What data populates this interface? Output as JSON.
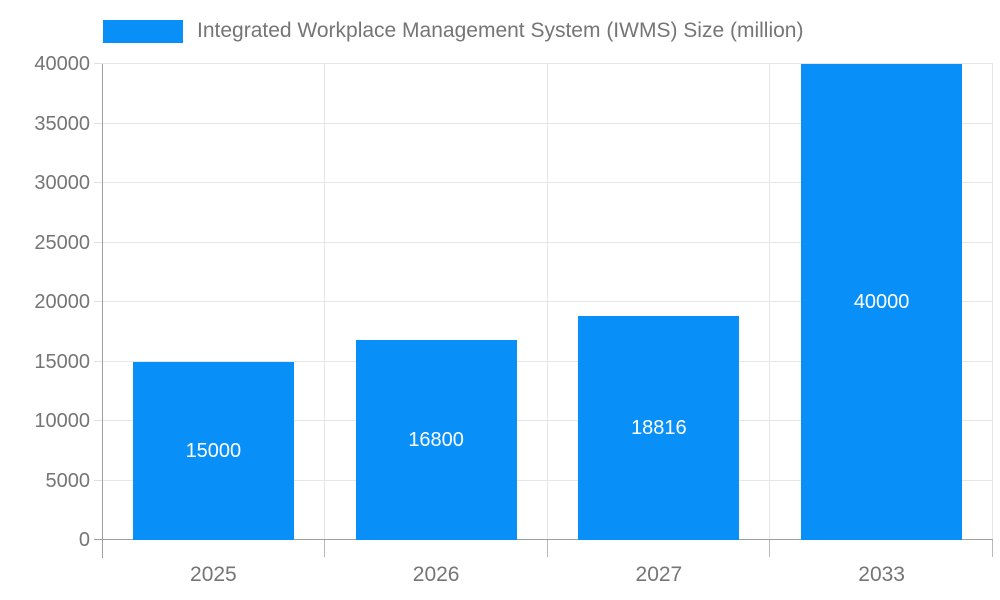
{
  "legend": {
    "label": "Integrated Workplace Management System (IWMS) Size (million)",
    "swatch_color": "#0890f8"
  },
  "chart_data": {
    "type": "bar",
    "categories": [
      "2025",
      "2026",
      "2027",
      "2033"
    ],
    "values": [
      15000,
      16800,
      18816,
      40000
    ],
    "series": [
      {
        "name": "Integrated Workplace Management System (IWMS) Size (million)",
        "values": [
          15000,
          16800,
          18816,
          40000
        ]
      }
    ],
    "data_labels": [
      "15000",
      "16800",
      "18816",
      "40000"
    ],
    "title": "",
    "xlabel": "",
    "ylabel": "",
    "ylim": [
      0,
      40000
    ],
    "ytick_step": 5000,
    "ytick_labels": [
      "0",
      "5000",
      "10000",
      "15000",
      "20000",
      "25000",
      "30000",
      "35000",
      "40000"
    ],
    "grid": true,
    "legend_position": "top",
    "bar_color": "#0890f8",
    "bar_label_color": "#ffffff"
  },
  "colors": {
    "bar": "#0890f8",
    "grid": "#e6e6e6",
    "axis": "#9e9e9e",
    "text": "#757575",
    "background": "#ffffff"
  }
}
